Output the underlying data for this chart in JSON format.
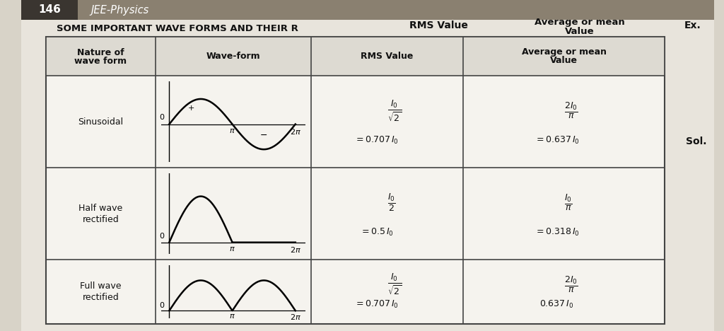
{
  "page_num": "146",
  "subject": "JEE-Physics",
  "title": "SOME IMPORTANT WAVE FORMS AND THEIR R",
  "col_headers": [
    "Nature of\nwave form",
    "Wave-form",
    "RMS Value",
    "Average or mean\nValue"
  ],
  "rows": [
    {
      "nature": "Sinusoidal",
      "rms_line1": "$\\frac{I_0}{\\sqrt{2}}$",
      "rms_line2": "$= 0.707\\, I_0$",
      "avg_line1": "$\\frac{2I_0}{\\pi}$",
      "avg_line2": "$= 0.637\\, I_0$",
      "wave_type": "sinusoidal"
    },
    {
      "nature": "Half wave\nrectified",
      "rms_line1": "$\\frac{I_0}{2}$",
      "rms_line2": "$= 0.5\\, I_0$",
      "avg_line1": "$\\frac{I_0}{\\pi}$",
      "avg_line2": "$= 0.318\\, I_0$",
      "wave_type": "half_wave"
    },
    {
      "nature": "Full wave\nrectified",
      "rms_line1": "$\\frac{I_0}{\\sqrt{2}}$",
      "rms_line2": "$= 0.707\\, I_0$",
      "avg_line1": "$\\frac{2I_0}{\\pi}$",
      "avg_line2": "$0.637\\, I_0$",
      "wave_type": "full_wave"
    }
  ],
  "bg_color": "#d8d3c8",
  "page_bg": "#e8e4dc",
  "table_bg": "#f0ede6",
  "header_bar_bg": "#8a8070",
  "page_num_bg": "#3a3530",
  "border_color": "#444444",
  "text_color": "#111111",
  "white": "#f5f3ee"
}
